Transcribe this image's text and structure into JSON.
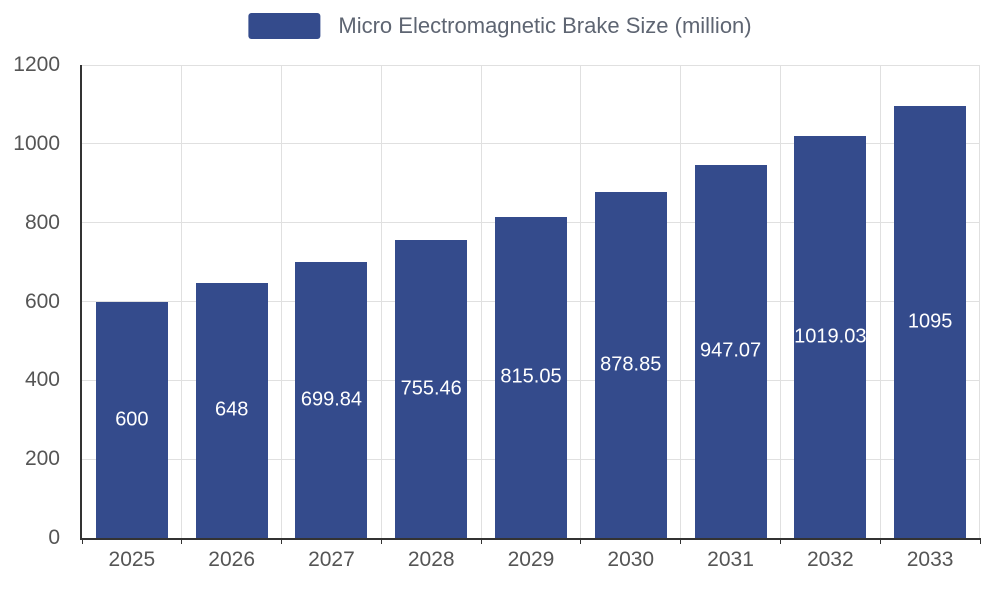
{
  "colors": {
    "bar": "#344b8c",
    "grid": "#e0e0e0",
    "axis": "#333333",
    "tick_text": "#555555",
    "value_label_text": "#ffffff"
  },
  "legend": {
    "label": "Micro Electromagnetic Brake Size (million)"
  },
  "chart_data": {
    "type": "bar",
    "title": "Micro Electromagnetic Brake Size (million)",
    "categories": [
      "2025",
      "2026",
      "2027",
      "2028",
      "2029",
      "2030",
      "2031",
      "2032",
      "2033"
    ],
    "values": [
      600,
      648,
      699.84,
      755.46,
      815.05,
      878.85,
      947.07,
      1019.03,
      1095
    ],
    "value_labels": [
      "600",
      "648",
      "699.84",
      "755.46",
      "815.05",
      "878.85",
      "947.07",
      "1019.03",
      "1095"
    ],
    "xlabel": "",
    "ylabel": "",
    "ylim": [
      0,
      1200
    ],
    "yticks": [
      0,
      200,
      400,
      600,
      800,
      1000,
      1200
    ],
    "grid": true,
    "legend_position": "top-center",
    "bar_label_position": "center-inside"
  }
}
